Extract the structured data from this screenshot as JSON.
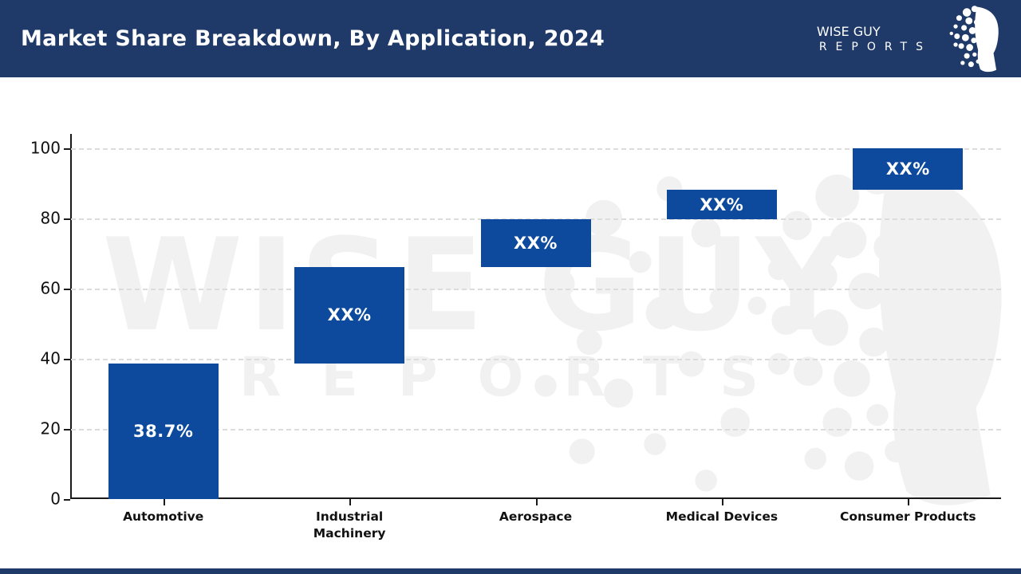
{
  "header": {
    "title": "Market Share Breakdown, By Application, 2024",
    "logo": {
      "line1": "WISE GUY",
      "line2": "REPORTS"
    }
  },
  "watermark": {
    "line1": "WISE GUY",
    "line2": "REPORTS"
  },
  "colors": {
    "header_bg": "#1f3a68",
    "footer_bg": "#1f3a68",
    "bar": "#0d4a9d",
    "bar_label": "#ffffff",
    "axis": "#1a1a1a",
    "gridline": "#dcdcdc",
    "watermark": "#f1f1f1",
    "title_text": "#ffffff"
  },
  "chart_data": {
    "type": "bar",
    "subtype": "waterfall",
    "title": "Market Share Breakdown, By Application, 2024",
    "xlabel": "",
    "ylabel": "",
    "ylim": [
      0,
      104
    ],
    "yticks": [
      0,
      20,
      40,
      60,
      80,
      100
    ],
    "grid": "horizontal-dashed",
    "legend": "none",
    "categories": [
      "Automotive",
      "Industrial Machinery",
      "Aerospace",
      "Medical Devices",
      "Consumer Products"
    ],
    "tick_labels": [
      "Automotive",
      "Industrial\nMachinery",
      "Aerospace",
      "Medical Devices",
      "Consumer Products"
    ],
    "bars": [
      {
        "category": "Automotive",
        "start": 0,
        "end": 38.7,
        "label": "38.7%"
      },
      {
        "category": "Industrial Machinery",
        "start": 38.7,
        "end": 66.2,
        "label": "XX%"
      },
      {
        "category": "Aerospace",
        "start": 66.2,
        "end": 79.7,
        "label": "XX%"
      },
      {
        "category": "Medical Devices",
        "start": 79.7,
        "end": 88.2,
        "label": "XX%"
      },
      {
        "category": "Consumer Products",
        "start": 88.2,
        "end": 100,
        "label": "XX%"
      }
    ],
    "bar_color": "#0d4a9d",
    "bar_label_color": "#ffffff"
  }
}
